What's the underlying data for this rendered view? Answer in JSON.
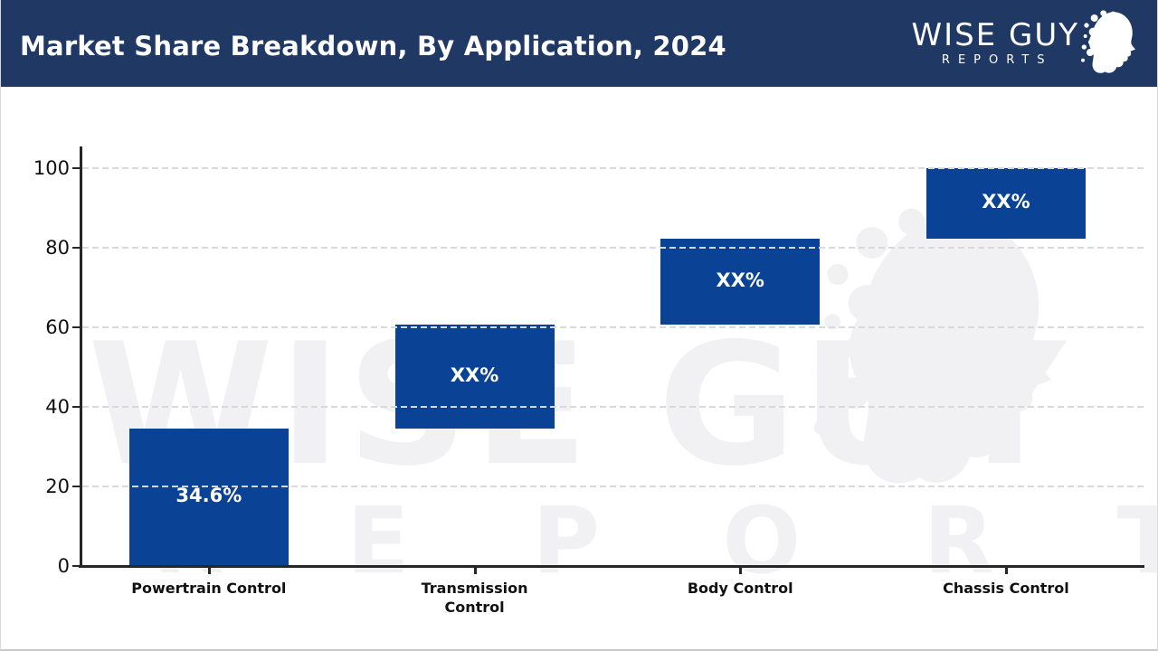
{
  "header": {
    "title": "Market Share Breakdown, By Application, 2024",
    "bg_color": "#1f3864",
    "logo": {
      "name": "WISE GUY",
      "sub": "REPORTS"
    }
  },
  "watermark": {
    "line1": "WISE GUY",
    "line2": "R E P O R T S"
  },
  "chart_data": {
    "type": "bar",
    "variant": "waterfall",
    "title": "Market Share Breakdown, By Application, 2024",
    "categories": [
      "Powertrain Control",
      "Transmission\nControl",
      "Body Control",
      "Chassis Control"
    ],
    "segments": [
      {
        "category": "Powertrain Control",
        "start": 0,
        "end": 34.6,
        "label": "34.6%"
      },
      {
        "category": "Transmission\nControl",
        "start": 34.6,
        "end": 60.6,
        "label": "XX%",
        "value_estimated": true
      },
      {
        "category": "Body Control",
        "start": 60.6,
        "end": 82.2,
        "label": "XX%",
        "value_estimated": true
      },
      {
        "category": "Chassis Control",
        "start": 82.2,
        "end": 100,
        "label": "XX%",
        "value_estimated": true
      }
    ],
    "bar_labels": [
      "34.6%",
      "XX%",
      "XX%",
      "XX%"
    ],
    "ylim": [
      0,
      100
    ],
    "yticks": [
      0,
      20,
      40,
      60,
      80,
      100
    ],
    "grid": "horizontal-dashed",
    "legend": "none",
    "colors": {
      "bar": "#0a4296",
      "bar_label": "#ffffff",
      "axis": "#262626",
      "grid": "#d9d9d9",
      "tick_label": "#111111"
    }
  }
}
